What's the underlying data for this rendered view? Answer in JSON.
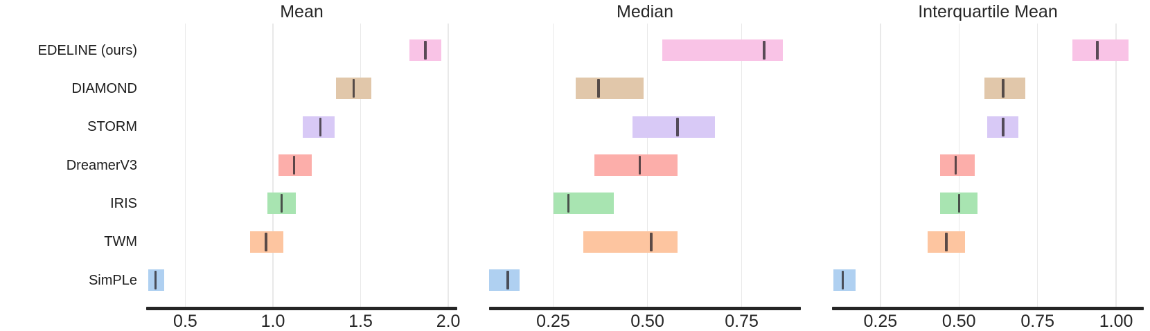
{
  "figure": {
    "background": "#ffffff",
    "text_color": "#262626",
    "grid_color": "#e9e9e9",
    "axis_color": "#262626",
    "estimate_line_color": "rgba(45,40,45,0.78)"
  },
  "algorithms": [
    {
      "label": "EDELINE (ours)",
      "color": "#f9c3e6"
    },
    {
      "label": "DIAMOND",
      "color": "#e1c7aa"
    },
    {
      "label": "STORM",
      "color": "#d8c9f6"
    },
    {
      "label": "DreamerV3",
      "color": "#fcaeaa"
    },
    {
      "label": "IRIS",
      "color": "#a8e4b1"
    },
    {
      "label": "TWM",
      "color": "#fdc5a0"
    },
    {
      "label": "SimPLe",
      "color": "#afd0f1"
    }
  ],
  "chart_data": [
    {
      "type": "bar",
      "subtype": "horizontal-interval",
      "title": "Mean",
      "categories": [
        "EDELINE (ours)",
        "DIAMOND",
        "STORM",
        "DreamerV3",
        "IRIS",
        "TWM",
        "SimPLe"
      ],
      "intervals": [
        [
          1.78,
          1.96
        ],
        [
          1.36,
          1.56
        ],
        [
          1.17,
          1.35
        ],
        [
          1.03,
          1.22
        ],
        [
          0.97,
          1.13
        ],
        [
          0.87,
          1.06
        ],
        [
          0.29,
          0.38
        ]
      ],
      "point_estimates": [
        1.87,
        1.46,
        1.27,
        1.12,
        1.05,
        0.96,
        0.33
      ],
      "xlim": [
        0.277,
        2.051
      ],
      "xticks": {
        "values": [
          0.5,
          1.0,
          1.5,
          2.0
        ],
        "labels": [
          "0.5",
          "1.0",
          "1.5",
          "2.0"
        ]
      },
      "grid": "vertical-only",
      "legend": "none"
    },
    {
      "type": "bar",
      "subtype": "horizontal-interval",
      "title": "Median",
      "categories": [
        "EDELINE (ours)",
        "DIAMOND",
        "STORM",
        "DreamerV3",
        "IRIS",
        "TWM",
        "SimPLe"
      ],
      "intervals": [
        [
          0.54,
          0.86
        ],
        [
          0.31,
          0.49
        ],
        [
          0.46,
          0.68
        ],
        [
          0.36,
          0.58
        ],
        [
          0.25,
          0.41
        ],
        [
          0.33,
          0.58
        ],
        [
          0.08,
          0.16
        ]
      ],
      "point_estimates": [
        0.81,
        0.37,
        0.58,
        0.48,
        0.29,
        0.51,
        0.13
      ],
      "xlim": [
        0.08,
        0.907
      ],
      "xticks": {
        "values": [
          0.25,
          0.5,
          0.75
        ],
        "labels": [
          "0.25",
          "0.50",
          "0.75"
        ]
      },
      "grid": "vertical-only",
      "legend": "none"
    },
    {
      "type": "bar",
      "subtype": "horizontal-interval",
      "title": "Interquartile Mean",
      "categories": [
        "EDELINE (ours)",
        "DIAMOND",
        "STORM",
        "DreamerV3",
        "IRIS",
        "TWM",
        "SimPLe"
      ],
      "intervals": [
        [
          0.86,
          1.04
        ],
        [
          0.58,
          0.71
        ],
        [
          0.59,
          0.69
        ],
        [
          0.44,
          0.55
        ],
        [
          0.44,
          0.56
        ],
        [
          0.4,
          0.52
        ],
        [
          0.1,
          0.17
        ]
      ],
      "point_estimates": [
        0.94,
        0.64,
        0.64,
        0.49,
        0.5,
        0.46,
        0.13
      ],
      "xlim": [
        0.096,
        1.088
      ],
      "xticks": {
        "values": [
          0.25,
          0.5,
          0.75,
          1.0
        ],
        "labels": [
          "0.25",
          "0.50",
          "0.75",
          "1.00"
        ]
      },
      "grid": "vertical-only",
      "legend": "none"
    }
  ]
}
